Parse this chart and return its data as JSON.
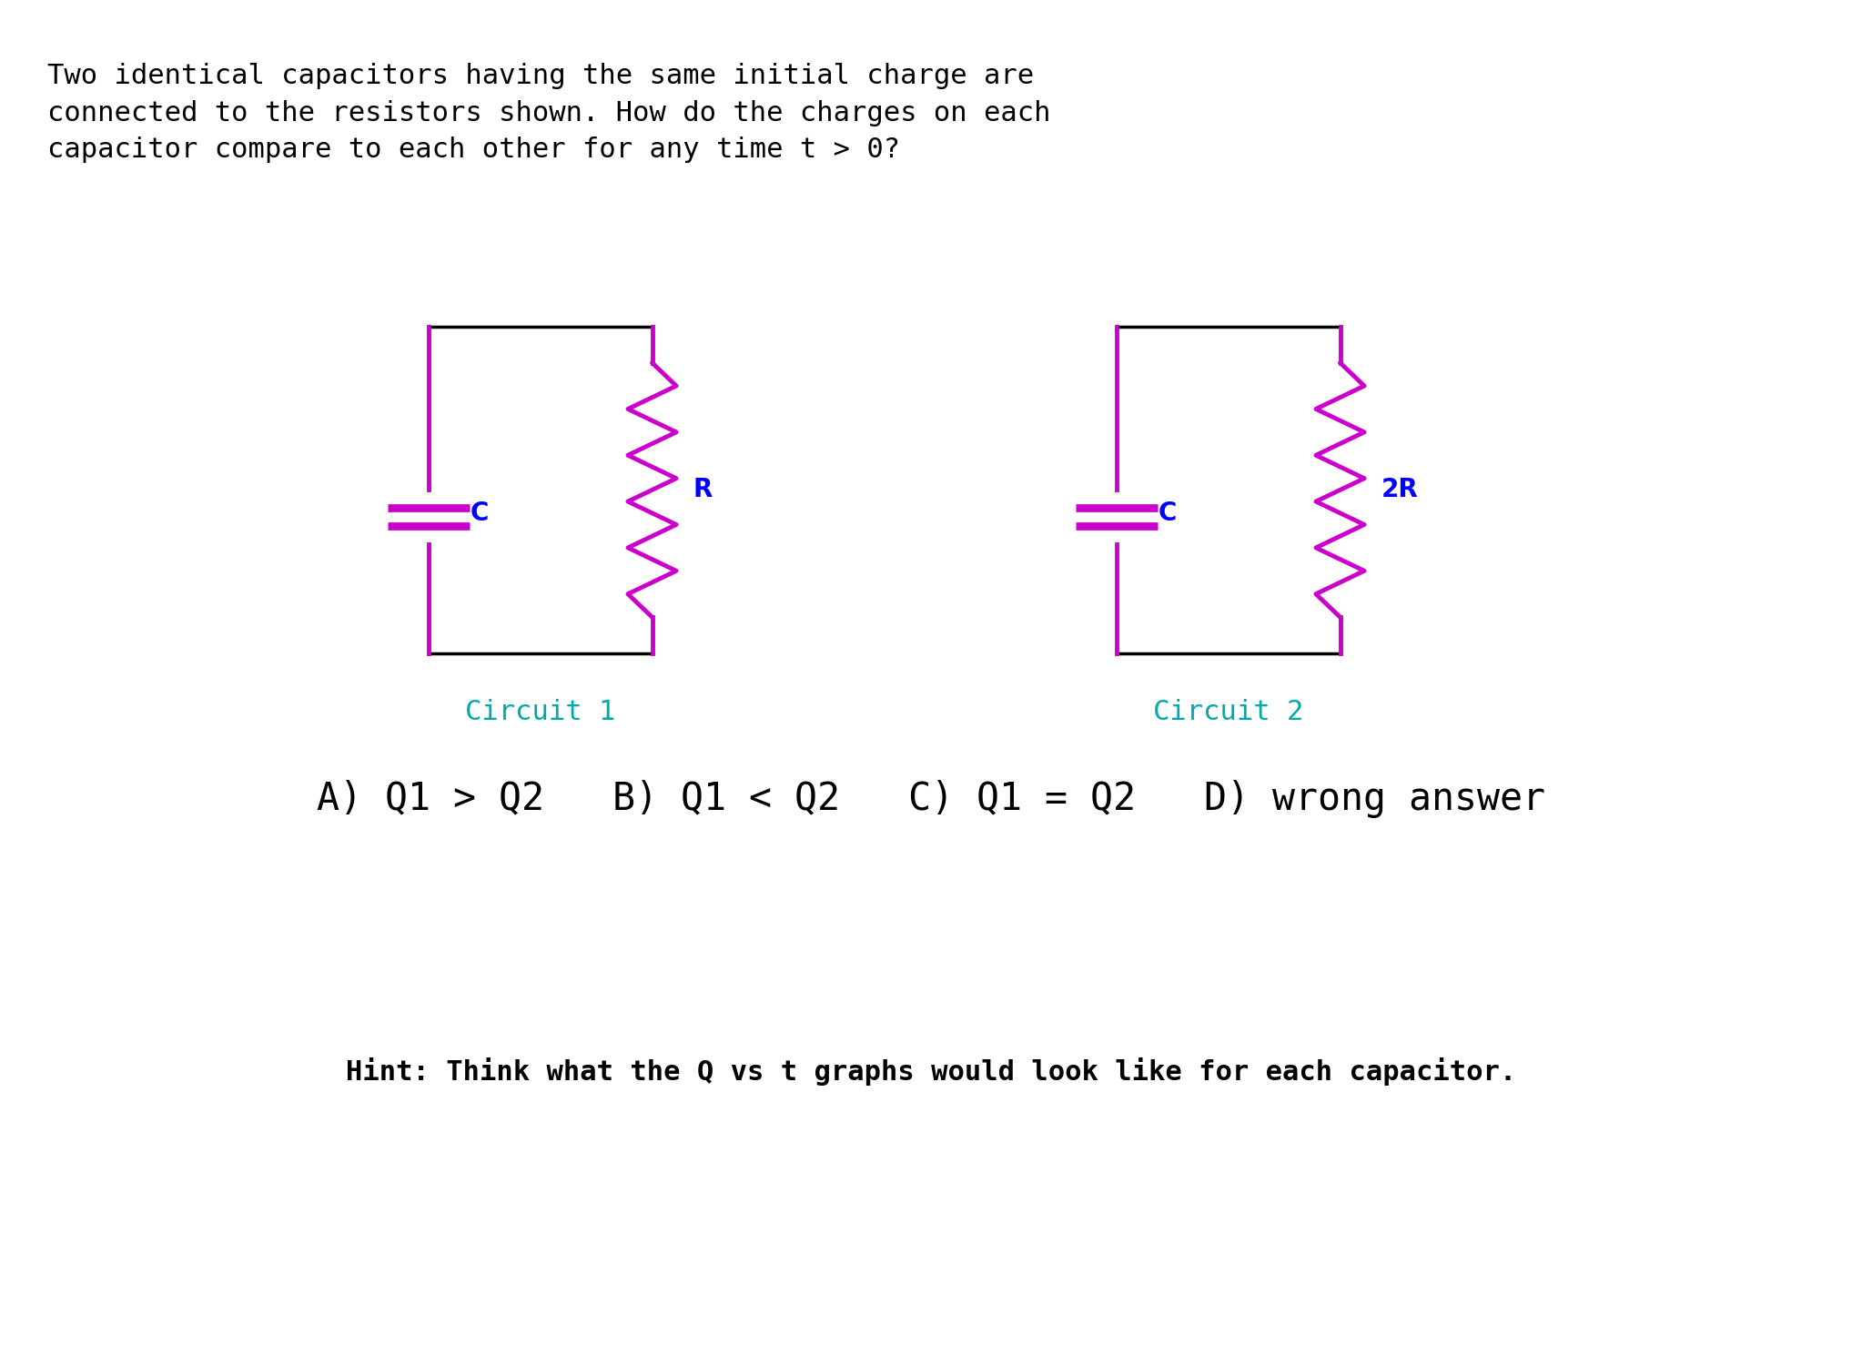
{
  "title_text": "Two identical capacitors having the same initial charge are\nconnected to the resistors shown. How do the charges on each\ncapacitor compare to each other for any time t > 0?",
  "circuit1_label": "Circuit 1",
  "circuit2_label": "Circuit 2",
  "resistor1_label": "R",
  "resistor2_label": "2R",
  "cap_label": "C",
  "options_text": "A) Q1 > Q2   B) Q1 < Q2   C) Q1 = Q2   D) wrong answer",
  "hint_text": "Hint: Think what the Q vs t graphs would look like for each capacitor.",
  "bg_color": "#ffffff",
  "text_color": "#000000",
  "circuit_color": "#cc00cc",
  "wire_color": "#000000",
  "label_color": "#0000ff",
  "title_fontsize": 22,
  "options_fontsize": 30,
  "hint_fontsize": 22,
  "circuit_label_fontsize": 22
}
